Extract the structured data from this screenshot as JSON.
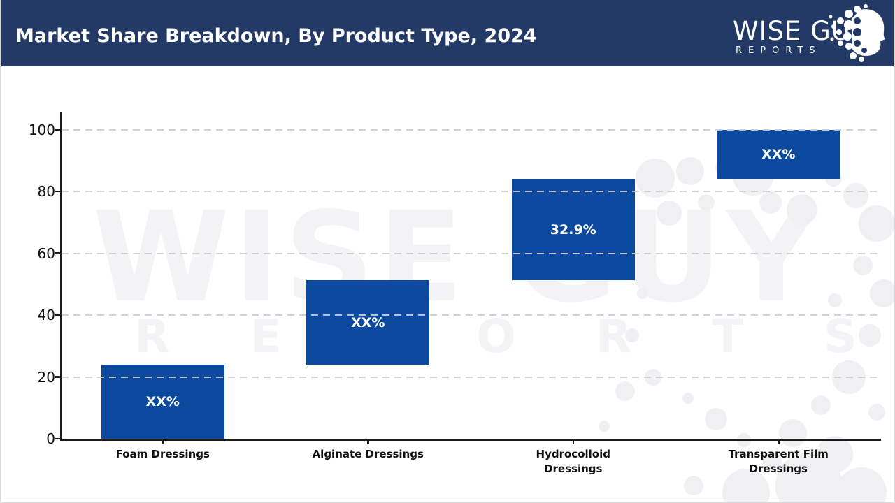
{
  "header": {
    "title": "Market Share Breakdown, By Product Type, 2024",
    "logo": {
      "line1": "WISE GUY",
      "line2": "REPORTS"
    }
  },
  "watermark": {
    "line1": "WISE GUY",
    "line2": "R E P O R T S"
  },
  "colors": {
    "header_bg": "#243a66",
    "bar": "#0b4a9e",
    "grid": "#cdcdcd",
    "axis": "#1a1a1a",
    "watermark": "#f3f3f5",
    "watermark_dots": "#f0f0f2"
  },
  "chart_data": {
    "type": "bar",
    "subtype": "waterfall-floating-bars",
    "title": "Market Share Breakdown, By Product Type, 2024",
    "xlabel": "",
    "ylabel": "",
    "ylim": [
      0,
      100
    ],
    "yticks": [
      0,
      20,
      40,
      60,
      80,
      100
    ],
    "grid": "horizontal dashed, drawn over bars",
    "legend": "none",
    "categories": [
      "Foam Dressings",
      "Alginate Dressings",
      "Hydrocolloid Dressings",
      "Transparent Film Dressings"
    ],
    "category_lines": [
      [
        "Foam Dressings"
      ],
      [
        "Alginate Dressings"
      ],
      [
        "Hydrocolloid",
        "Dressings"
      ],
      [
        "Transparent Film",
        "Dressings"
      ]
    ],
    "segments": [
      {
        "category": "Foam Dressings",
        "start": 0,
        "end": 23.9,
        "label": "XX%"
      },
      {
        "category": "Alginate Dressings",
        "start": 23.9,
        "end": 51.2,
        "label": "XX%"
      },
      {
        "category": "Hydrocolloid Dressings",
        "start": 51.2,
        "end": 84.1,
        "label": "32.9%",
        "value": 32.9
      },
      {
        "category": "Transparent Film Dressings",
        "start": 84.1,
        "end": 100,
        "label": "XX%"
      }
    ]
  }
}
